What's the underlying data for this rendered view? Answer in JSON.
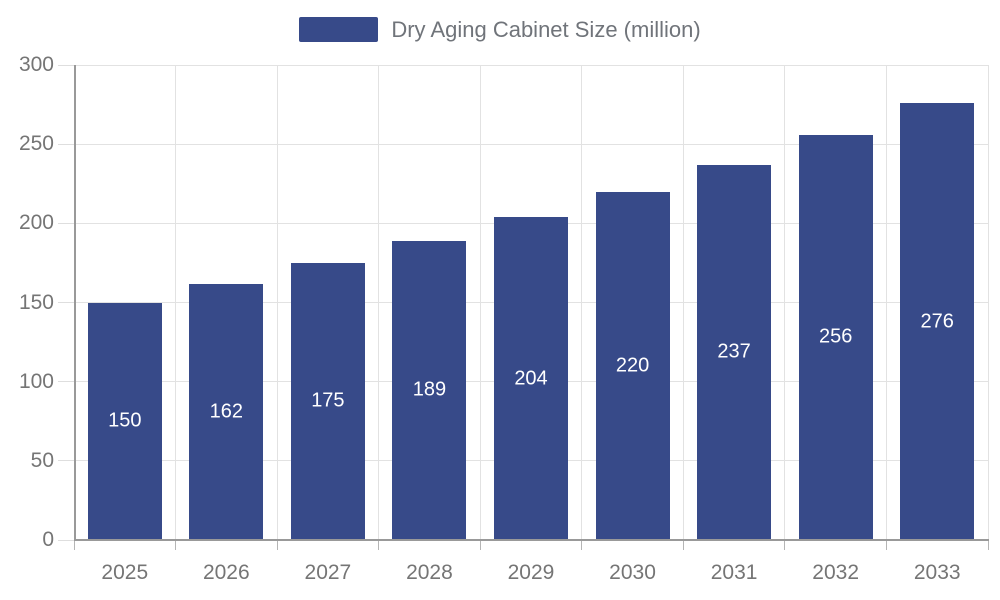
{
  "legend": {
    "label": "Dry Aging Cabinet Size (million)"
  },
  "chart_data": {
    "type": "bar",
    "title": "Dry Aging Cabinet Size (million)",
    "series_name": "Dry Aging Cabinet Size (million)",
    "categories": [
      "2025",
      "2026",
      "2027",
      "2028",
      "2029",
      "2030",
      "2031",
      "2032",
      "2033"
    ],
    "values": [
      150,
      162,
      175,
      189,
      204,
      220,
      237,
      256,
      276
    ],
    "xlabel": "",
    "ylabel": "",
    "ylim": [
      0,
      300
    ],
    "yticks": [
      0,
      50,
      100,
      150,
      200,
      250,
      300
    ],
    "grid": true,
    "legend_position": "top",
    "colors": {
      "bar": "#374a89",
      "bar_label_text": "#ffffff",
      "grid_line": "#e2e2e2",
      "axis_line": "#999999",
      "tick_text": "#757575",
      "legend_text": "#70747a"
    }
  }
}
